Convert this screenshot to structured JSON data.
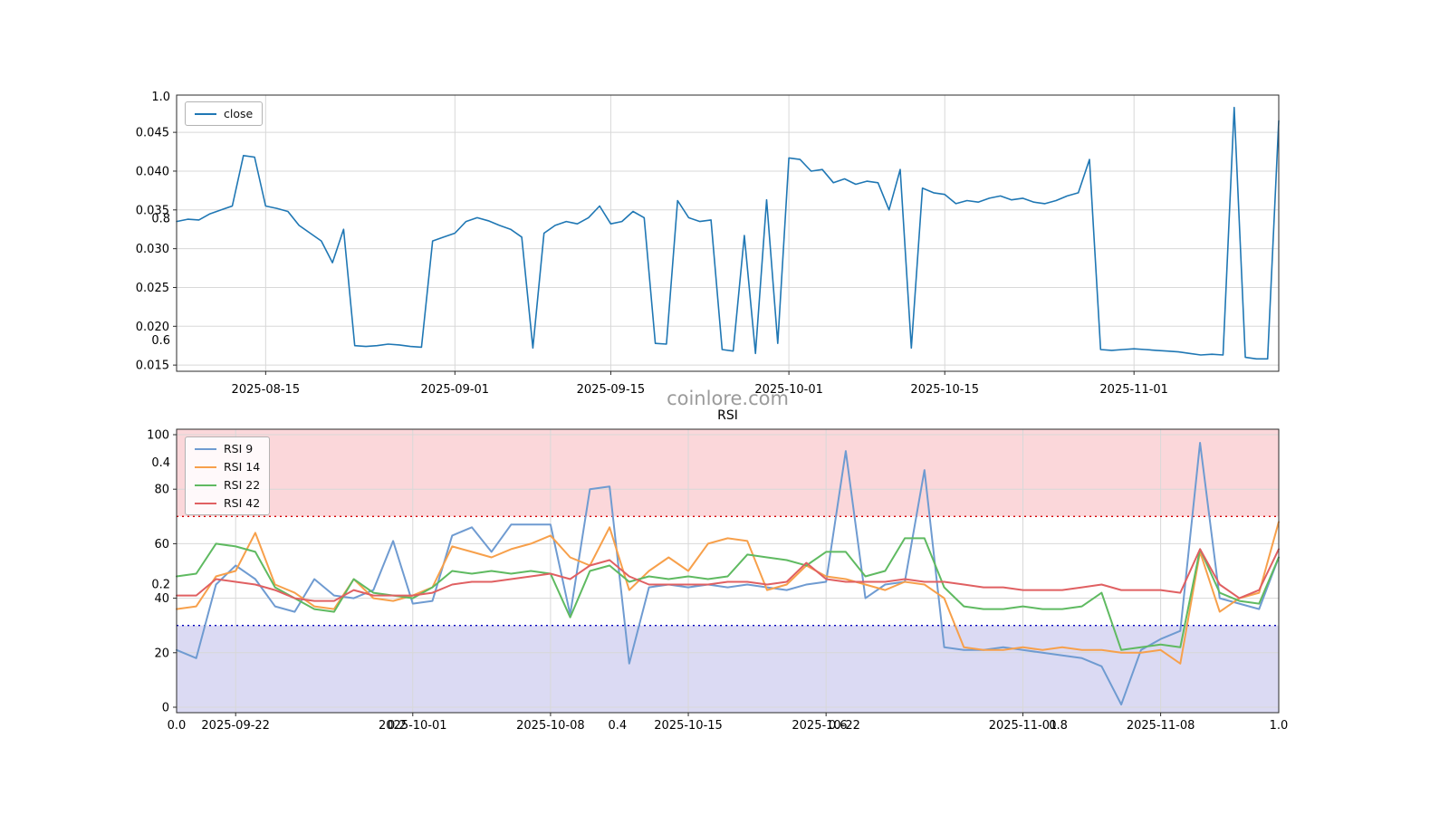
{
  "figure": {
    "watermark": "coinlore.com"
  },
  "overlay_axis": {
    "left_ticks": [
      {
        "label": "1.0",
        "v": 1.0
      },
      {
        "label": "0.8",
        "v": 0.8
      },
      {
        "label": "0.6",
        "v": 0.6
      },
      {
        "label": "0.4",
        "v": 0.4
      },
      {
        "label": "0.2",
        "v": 0.2
      }
    ],
    "bottom_ticks": [
      {
        "label": "0.0",
        "v": 0.0
      },
      {
        "label": "0.2",
        "v": 0.2
      },
      {
        "label": "0.4",
        "v": 0.4
      },
      {
        "label": "0.6",
        "v": 0.6
      },
      {
        "label": "0.8",
        "v": 0.8
      },
      {
        "label": "1.0",
        "v": 1.0
      }
    ]
  },
  "chart_data": [
    {
      "id": "price",
      "type": "line",
      "title": "",
      "ylim": [
        0.0142,
        0.0498
      ],
      "y_ticks": [
        0.015,
        0.02,
        0.025,
        0.03,
        0.035,
        0.04,
        0.045
      ],
      "y_tick_labels": [
        "0.015",
        "0.020",
        "0.025",
        "0.030",
        "0.035",
        "0.040",
        "0.045"
      ],
      "x_ticks": [
        {
          "label": "2025-08-15",
          "i": 8
        },
        {
          "label": "2025-09-01",
          "i": 25
        },
        {
          "label": "2025-09-15",
          "i": 39
        },
        {
          "label": "2025-10-01",
          "i": 55
        },
        {
          "label": "2025-10-15",
          "i": 69
        },
        {
          "label": "2025-11-01",
          "i": 86
        }
      ],
      "x_range": [
        "2025-08-07",
        "2025-11-14"
      ],
      "series": [
        {
          "name": "close",
          "color": "#1f77b4",
          "w": 1.6,
          "values": [
            0.0335,
            0.0338,
            0.0337,
            0.0345,
            0.035,
            0.0355,
            0.042,
            0.0418,
            0.0355,
            0.0352,
            0.0348,
            0.033,
            0.032,
            0.031,
            0.0282,
            0.0325,
            0.0175,
            0.0174,
            0.0175,
            0.0177,
            0.0176,
            0.0174,
            0.0173,
            0.031,
            0.0315,
            0.032,
            0.0335,
            0.034,
            0.0336,
            0.033,
            0.0325,
            0.0315,
            0.0172,
            0.032,
            0.033,
            0.0335,
            0.0332,
            0.034,
            0.0355,
            0.0332,
            0.0335,
            0.0348,
            0.034,
            0.0178,
            0.0177,
            0.0362,
            0.034,
            0.0335,
            0.0337,
            0.017,
            0.0168,
            0.0317,
            0.0165,
            0.0363,
            0.0178,
            0.0417,
            0.0415,
            0.04,
            0.0402,
            0.0385,
            0.039,
            0.0383,
            0.0387,
            0.0385,
            0.035,
            0.0402,
            0.0172,
            0.0378,
            0.0372,
            0.037,
            0.0358,
            0.0362,
            0.036,
            0.0365,
            0.0368,
            0.0363,
            0.0365,
            0.036,
            0.0358,
            0.0362,
            0.0368,
            0.0372,
            0.0415,
            0.017,
            0.0169,
            0.017,
            0.0171,
            0.017,
            0.0169,
            0.0168,
            0.0167,
            0.0165,
            0.0163,
            0.0164,
            0.0163,
            0.0482,
            0.016,
            0.0158,
            0.0158,
            0.0465
          ]
        }
      ]
    },
    {
      "id": "rsi",
      "type": "line",
      "title": "RSI",
      "ylim": [
        -2,
        102
      ],
      "y_ticks": [
        0,
        20,
        40,
        60,
        80,
        100
      ],
      "y_tick_labels": [
        "0",
        "20",
        "40",
        "60",
        "80",
        "100"
      ],
      "x_ticks": [
        {
          "label": "2025-09-22",
          "i": 3
        },
        {
          "label": "2025-10-01",
          "i": 12
        },
        {
          "label": "2025-10-08",
          "i": 19
        },
        {
          "label": "2025-10-15",
          "i": 26
        },
        {
          "label": "2025-10-22",
          "i": 33
        },
        {
          "label": "2025-11-01",
          "i": 43
        },
        {
          "label": "2025-11-08",
          "i": 50
        }
      ],
      "x_range": [
        "2025-09-19",
        "2025-11-14"
      ],
      "bands": [
        {
          "name": "overbought-band",
          "from": 70,
          "to": 102,
          "color": "#fbd7da"
        },
        {
          "name": "oversold-band",
          "from": -2,
          "to": 30,
          "color": "#dbdaf3"
        }
      ],
      "hlines": [
        {
          "name": "overbought-threshold-line",
          "y": 70,
          "color": "#d40000"
        },
        {
          "name": "oversold-threshold-line",
          "y": 30,
          "color": "#0000bb"
        }
      ],
      "series": [
        {
          "name": "RSI 9",
          "color": "#6f9bd1",
          "w": 2,
          "values": [
            21,
            18,
            45,
            52,
            47,
            37,
            35,
            47,
            41,
            40,
            43,
            61,
            38,
            39,
            63,
            66,
            57,
            67,
            67,
            67,
            34,
            80,
            81,
            16,
            44,
            45,
            44,
            45,
            44,
            45,
            44,
            43,
            45,
            46,
            94,
            40,
            45,
            46,
            87,
            22,
            21,
            21,
            22,
            21,
            20,
            19,
            18,
            15,
            1,
            21,
            25,
            28,
            97,
            40,
            38,
            36,
            55
          ]
        },
        {
          "name": "RSI 14",
          "color": "#f7a04b",
          "w": 2,
          "values": [
            36,
            37,
            48,
            50,
            64,
            45,
            42,
            37,
            36,
            47,
            40,
            39,
            41,
            44,
            59,
            57,
            55,
            58,
            60,
            63,
            55,
            52,
            66,
            43,
            50,
            55,
            50,
            60,
            62,
            61,
            43,
            45,
            52,
            48,
            47,
            45,
            43,
            46,
            45,
            40,
            22,
            21,
            21,
            22,
            21,
            22,
            21,
            21,
            20,
            20,
            21,
            16,
            57,
            35,
            40,
            42,
            68
          ]
        },
        {
          "name": "RSI 22",
          "color": "#5fba61",
          "w": 2,
          "values": [
            48,
            49,
            60,
            59,
            57,
            44,
            40,
            36,
            35,
            47,
            42,
            41,
            40,
            44,
            50,
            49,
            50,
            49,
            50,
            49,
            33,
            50,
            52,
            46,
            48,
            47,
            48,
            47,
            48,
            56,
            55,
            54,
            52,
            57,
            57,
            48,
            50,
            62,
            62,
            44,
            37,
            36,
            36,
            37,
            36,
            36,
            37,
            42,
            21,
            22,
            23,
            22,
            58,
            42,
            39,
            38,
            55
          ]
        },
        {
          "name": "RSI 42",
          "color": "#e06062",
          "w": 2,
          "values": [
            41,
            41,
            47,
            46,
            45,
            43,
            40,
            39,
            39,
            43,
            41,
            41,
            41,
            42,
            45,
            46,
            46,
            47,
            48,
            49,
            47,
            52,
            54,
            48,
            45,
            45,
            45,
            45,
            46,
            46,
            45,
            46,
            53,
            47,
            46,
            46,
            46,
            47,
            46,
            46,
            45,
            44,
            44,
            43,
            43,
            43,
            44,
            45,
            43,
            43,
            43,
            42,
            58,
            45,
            40,
            43,
            58
          ]
        }
      ]
    }
  ]
}
